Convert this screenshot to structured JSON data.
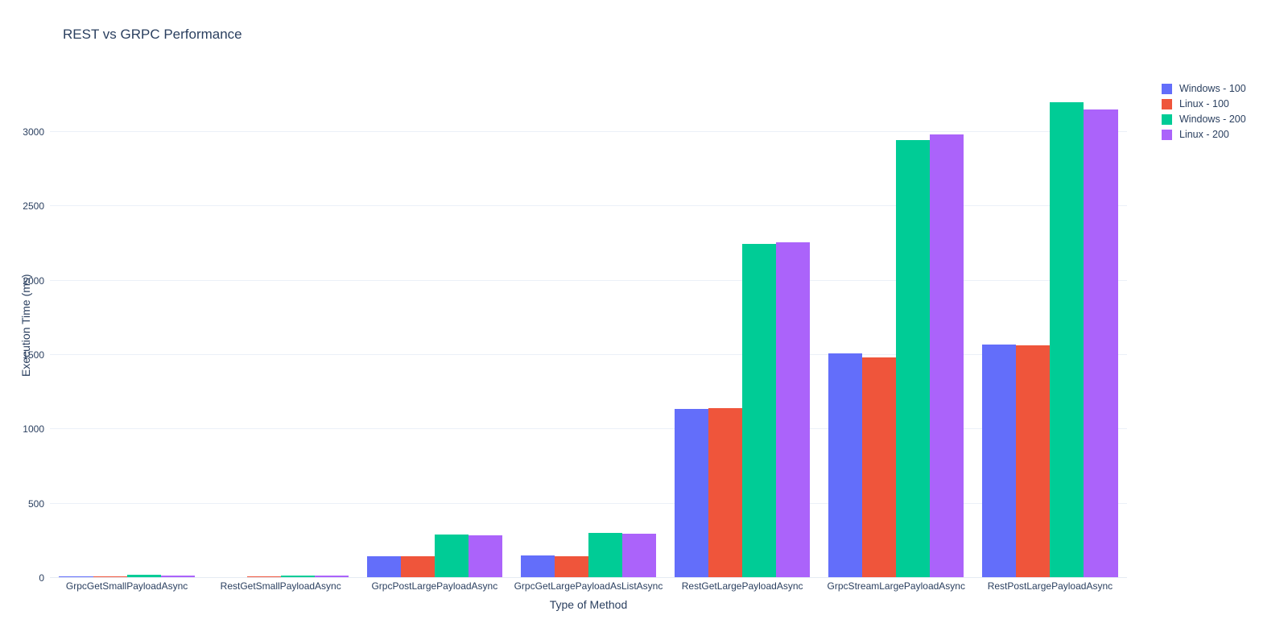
{
  "colors": {
    "text": "#2a3f5f",
    "grid": "#ebf0f8",
    "zeroline": "#e5ebf3",
    "background": "#ffffff"
  },
  "chart_data": {
    "type": "bar",
    "title": "REST vs GRPC Performance",
    "xlabel": "Type of Method",
    "ylabel": "Execution Time (ms)",
    "ylim": [
      0,
      3400
    ],
    "yticks": [
      0,
      500,
      1000,
      1500,
      2000,
      2500,
      3000
    ],
    "grid": true,
    "legend_position": "top-right",
    "categories": [
      "GrpcGetSmallPayloadAsync",
      "RestGetSmallPayloadAsync",
      "GrpcPostLargePayloadAsync",
      "GrpcGetLargePayloadAsListAsync",
      "RestGetLargePayloadAsync",
      "GrpcStreamLargePayloadAsync",
      "RestPostLargePayloadAsync"
    ],
    "series": [
      {
        "name": "Windows - 100",
        "color": "#636efa",
        "values": [
          10,
          8,
          146,
          151,
          1135,
          1510,
          1570
        ]
      },
      {
        "name": "Linux - 100",
        "color": "#ef553b",
        "values": [
          10,
          10,
          148,
          147,
          1145,
          1485,
          1565
        ]
      },
      {
        "name": "Windows - 200",
        "color": "#00cc96",
        "values": [
          20,
          18,
          290,
          303,
          2245,
          2945,
          3200
        ]
      },
      {
        "name": "Linux - 200",
        "color": "#ab63fa",
        "values": [
          18,
          17,
          288,
          298,
          2260,
          2985,
          3150
        ]
      }
    ]
  }
}
